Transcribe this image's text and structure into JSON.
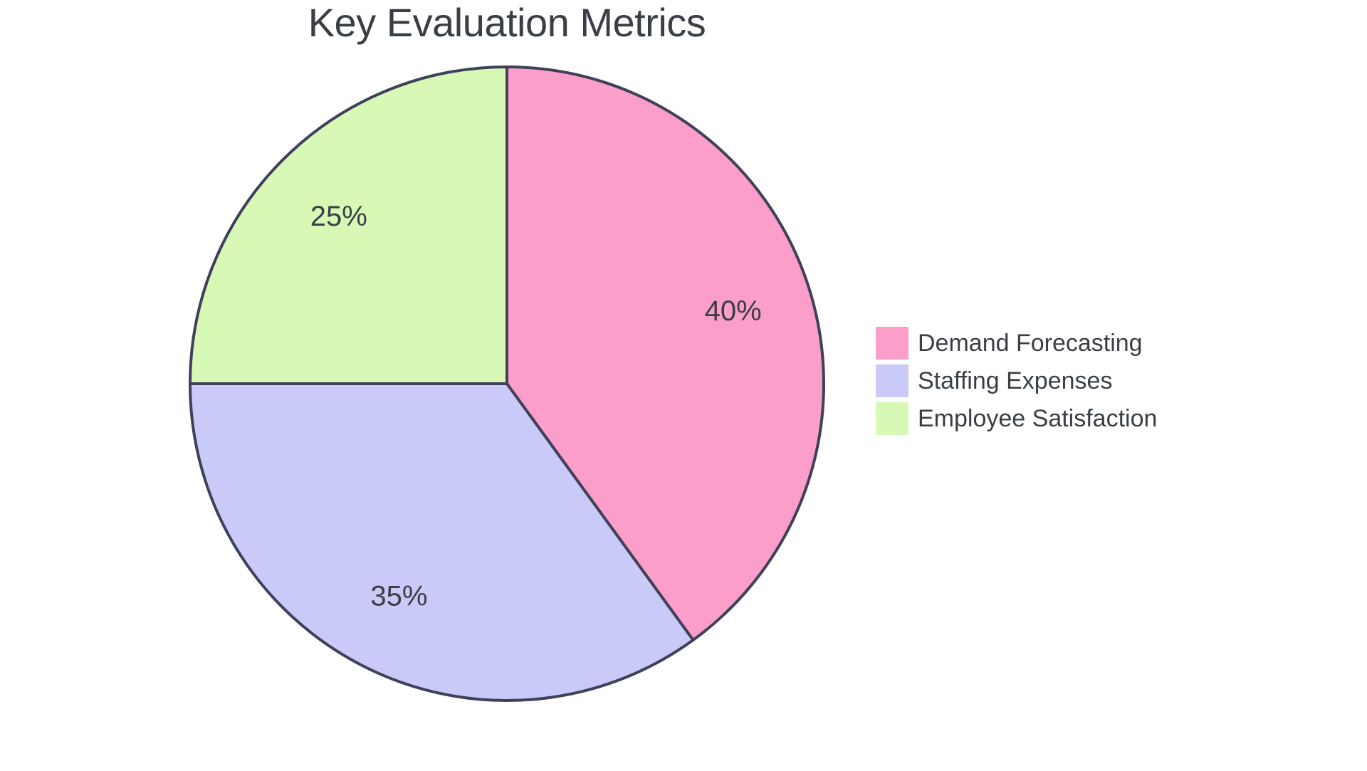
{
  "chart_data": {
    "type": "pie",
    "title": "Key Evaluation Metrics",
    "labels": [
      "Demand Forecasting",
      "Staffing Expenses",
      "Employee Satisfaction"
    ],
    "values": [
      40,
      35,
      25
    ],
    "slice_labels": [
      "40%",
      "35%",
      "25%"
    ],
    "colors": [
      "#FB9EC9",
      "#C9CAF8",
      "#D8F8B6"
    ],
    "outline_color": "#3E4159",
    "slice_label_color": "#3A3F46",
    "start_position": "12 o'clock",
    "direction": "clockwise",
    "legend_position": "right",
    "background": "#FFFFFF"
  }
}
